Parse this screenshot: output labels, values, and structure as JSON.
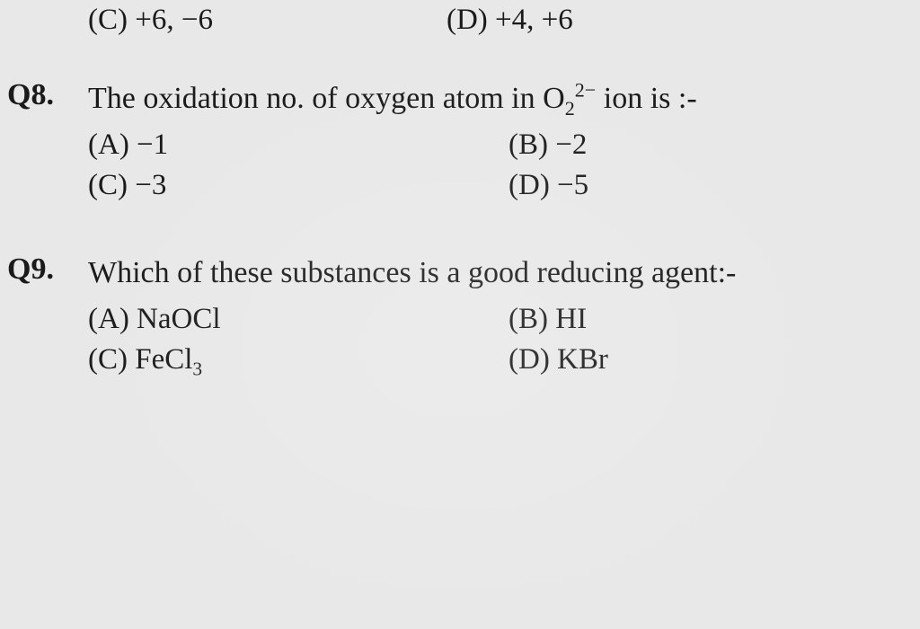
{
  "top_fragment": {
    "left": "(C) +6, −6",
    "right": "(D) +4, +6"
  },
  "q8": {
    "number": "Q8.",
    "stem_html": "The oxidation no. of oxygen atom in O<sub>2</sub><sup>2−</sup> ion is :-",
    "options": {
      "a": "(A) −1",
      "b": "(B) −2",
      "c": "(C) −3",
      "d": "(D) −5"
    }
  },
  "q9": {
    "number": "Q9.",
    "stem_html": "Which of these substances is a good reducing agent:-",
    "options": {
      "a": "(A) NaOCl",
      "b": "(B) HI",
      "c_html": "(C) FeCl<sub>3</sub>",
      "d": "(D) KBr"
    }
  },
  "bottom_fragment": {
    "left": "",
    "right": ""
  }
}
